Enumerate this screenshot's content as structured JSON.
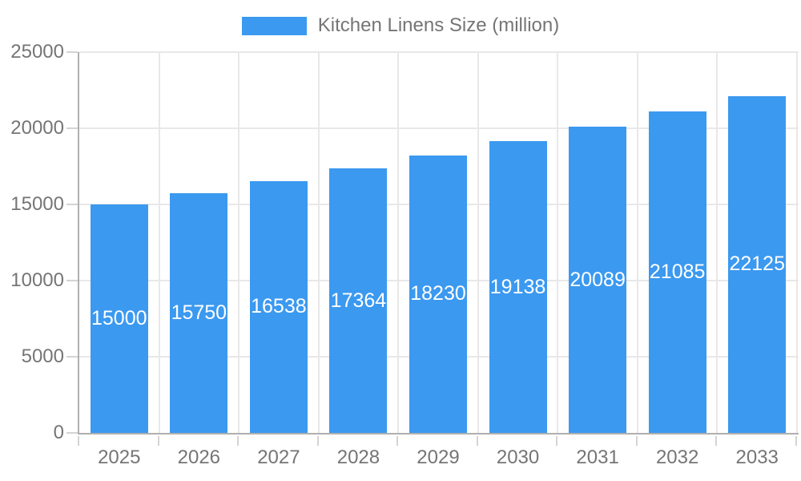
{
  "chart_data": {
    "type": "bar",
    "title": "Kitchen Linens Size (million)",
    "series_name": "Kitchen Linens Size (million)",
    "categories": [
      "2025",
      "2026",
      "2027",
      "2028",
      "2029",
      "2030",
      "2031",
      "2032",
      "2033"
    ],
    "values": [
      15000,
      15750,
      16538,
      17364,
      18230,
      19138,
      20089,
      21085,
      22125
    ],
    "value_labels": [
      "15000",
      "15750",
      "16538",
      "17364",
      "18230",
      "19138",
      "20089",
      "21085",
      "22125"
    ],
    "xlabel": "",
    "ylabel": "",
    "ylim": [
      0,
      25000
    ],
    "yticks": [
      0,
      5000,
      10000,
      15000,
      20000,
      25000
    ],
    "ytick_labels": [
      "0",
      "5000",
      "10000",
      "15000",
      "20000",
      "25000"
    ],
    "grid": true,
    "legend_position": "top-center",
    "colors": {
      "bar": "#3B99F0",
      "value_label": "#FFFFFF",
      "text": "#757575",
      "grid": "#E8E8E8",
      "axis": "#B0B0B0",
      "tick": "#D4D4D4",
      "background": "#FFFFFF"
    }
  }
}
